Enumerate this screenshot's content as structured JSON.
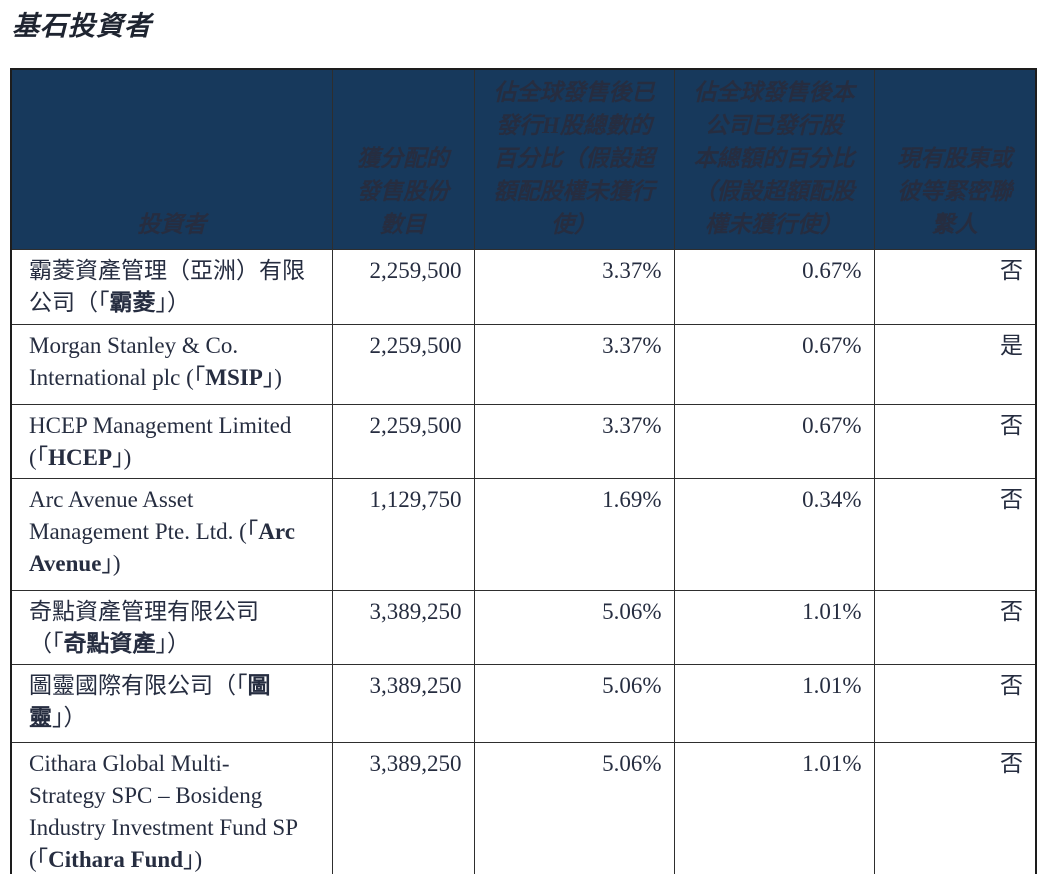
{
  "page": {
    "title": "基石投資者"
  },
  "colors": {
    "header_bg": "#17395c",
    "header_text": "#f7f7f5",
    "body_text": "#262d40",
    "border": "#2e2e2e"
  },
  "table": {
    "headers": {
      "investor": "投資者",
      "shares": "獲分配的\n發售股份\n數目",
      "pct_h_shares": "佔全球發售後已\n發行H股總數的\n百分比（假設超\n額配股權未獲行\n使）",
      "pct_total_capital": "佔全球發售後本\n公司已發行股\n本總額的百分比\n（假設超額配股\n權未獲行使）",
      "existing_shareholder": "現有股東或\n彼等緊密聯\n繫人"
    },
    "rows": [
      {
        "name_parts": [
          {
            "text": "霸菱資產管理（亞洲）有限\n公司（「",
            "bold": false
          },
          {
            "text": "霸菱",
            "bold": true
          },
          {
            "text": "」）",
            "bold": false
          }
        ],
        "shares": "2,259,500",
        "pct_h_shares": "3.37%",
        "pct_total_capital": "0.67%",
        "existing_shareholder": "否"
      },
      {
        "name_parts": [
          {
            "text": "Morgan Stanley & Co.\nInternational plc (「",
            "bold": false
          },
          {
            "text": "MSIP",
            "bold": true
          },
          {
            "text": "」)",
            "bold": false
          }
        ],
        "shares": "2,259,500",
        "pct_h_shares": "3.37%",
        "pct_total_capital": "0.67%",
        "existing_shareholder": "是"
      },
      {
        "name_parts": [
          {
            "text": "HCEP Management Limited\n(「",
            "bold": false
          },
          {
            "text": "HCEP",
            "bold": true
          },
          {
            "text": "」)",
            "bold": false
          }
        ],
        "shares": "2,259,500",
        "pct_h_shares": "3.37%",
        "pct_total_capital": "0.67%",
        "existing_shareholder": "否"
      },
      {
        "name_parts": [
          {
            "text": "Arc Avenue Asset\nManagement Pte. Ltd. (「",
            "bold": false
          },
          {
            "text": "Arc\nAvenue",
            "bold": true
          },
          {
            "text": "」)",
            "bold": false
          }
        ],
        "shares": "1,129,750",
        "pct_h_shares": "1.69%",
        "pct_total_capital": "0.34%",
        "existing_shareholder": "否"
      },
      {
        "name_parts": [
          {
            "text": "奇點資產管理有限公司\n（「",
            "bold": false
          },
          {
            "text": "奇點資產",
            "bold": true
          },
          {
            "text": "」）",
            "bold": false
          }
        ],
        "shares": "3,389,250",
        "pct_h_shares": "5.06%",
        "pct_total_capital": "1.01%",
        "existing_shareholder": "否"
      },
      {
        "name_parts": [
          {
            "text": "圖靈國際有限公司（「",
            "bold": false
          },
          {
            "text": "圖\n靈",
            "bold": true
          },
          {
            "text": "」）",
            "bold": false
          }
        ],
        "shares": "3,389,250",
        "pct_h_shares": "5.06%",
        "pct_total_capital": "1.01%",
        "existing_shareholder": "否"
      },
      {
        "name_parts": [
          {
            "text": "Cithara Global Multi-\nStrategy SPC – Bosideng\nIndustry Investment Fund SP\n(「",
            "bold": false
          },
          {
            "text": "Cithara Fund",
            "bold": true
          },
          {
            "text": "」)",
            "bold": false
          }
        ],
        "shares": "3,389,250",
        "pct_h_shares": "5.06%",
        "pct_total_capital": "1.01%",
        "existing_shareholder": "否"
      }
    ]
  }
}
